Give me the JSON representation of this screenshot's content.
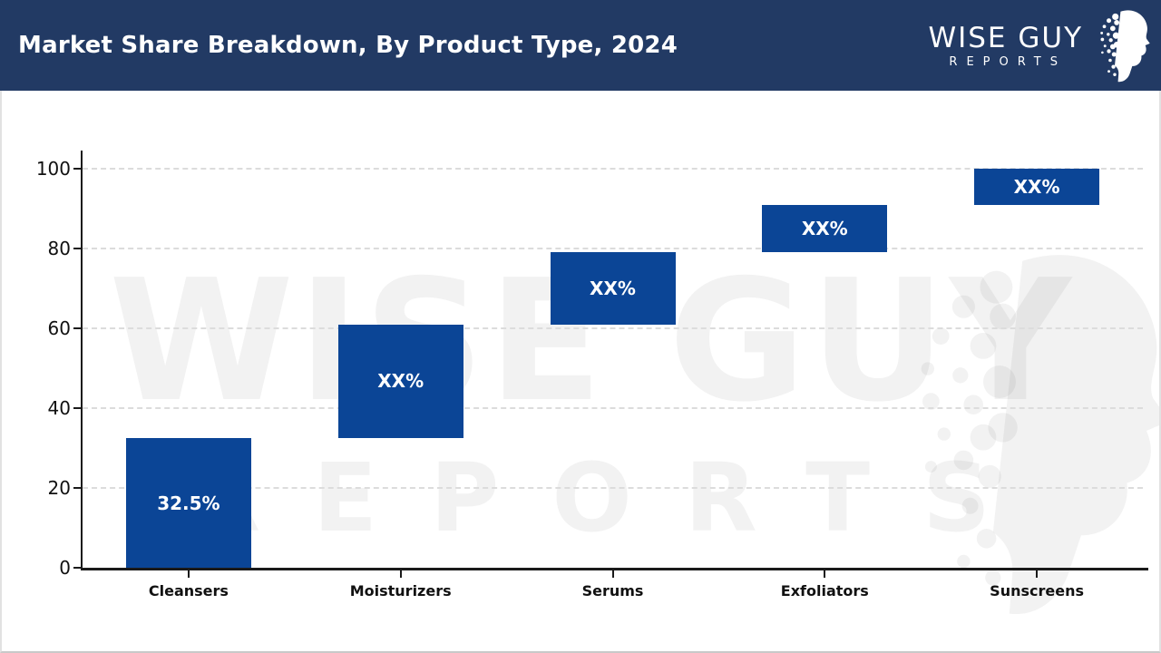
{
  "header": {
    "title": "Market Share Breakdown, By Product Type, 2024",
    "logo": {
      "line1": "WISE GUY",
      "line2": "REPORTS"
    }
  },
  "watermark": {
    "line1": "WISE GUY",
    "line2": "REPORTS"
  },
  "chart_data": {
    "type": "bar",
    "subtype": "waterfall",
    "title": "Market Share Breakdown, By Product Type, 2024",
    "categories": [
      "Cleansers",
      "Moisturizers",
      "Serums",
      "Exfoliators",
      "Sunscreens"
    ],
    "segments": [
      {
        "category": "Cleansers",
        "start": 0,
        "end": 32.5,
        "label": "32.5%"
      },
      {
        "category": "Moisturizers",
        "start": 32.5,
        "end": 61,
        "label": "XX%"
      },
      {
        "category": "Serums",
        "start": 61,
        "end": 79,
        "label": "XX%"
      },
      {
        "category": "Exfoliators",
        "start": 79,
        "end": 91,
        "label": "XX%"
      },
      {
        "category": "Sunscreens",
        "start": 91,
        "end": 100,
        "label": "XX%"
      }
    ],
    "yticks": [
      0,
      20,
      40,
      60,
      80,
      100
    ],
    "ylim": [
      0,
      105
    ],
    "xlabel": "",
    "ylabel": "",
    "grid": "horizontal-dashed",
    "legend": "none",
    "bar_color": "#0b4596",
    "bar_label_color": "#ffffff"
  },
  "colors": {
    "header_bg": "#223a64",
    "axis": "#1a1a1a",
    "gridline": "#dcdcdc",
    "text": "#111111",
    "border": "#c9c9c9"
  }
}
